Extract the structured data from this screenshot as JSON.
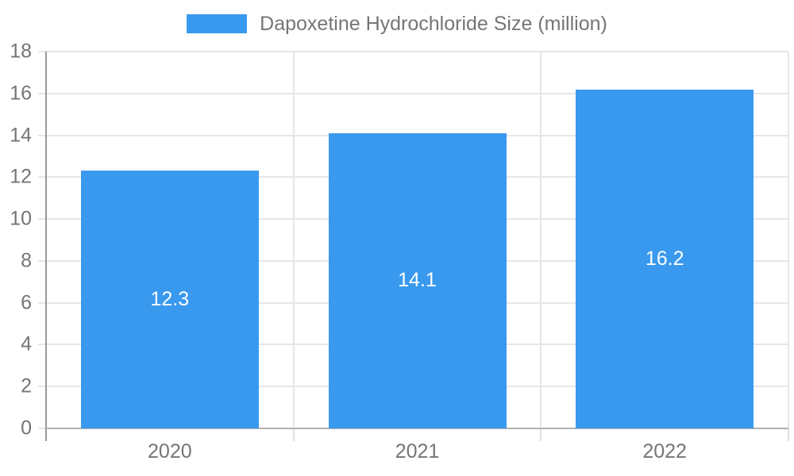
{
  "chart_data": {
    "type": "bar",
    "legend_label": "Dapoxetine Hydrochloride Size (million)",
    "categories": [
      "2020",
      "2021",
      "2022"
    ],
    "series": [
      {
        "name": "Dapoxetine Hydrochloride Size (million)",
        "values": [
          12.3,
          14.1,
          16.2
        ]
      }
    ],
    "value_labels": [
      "12.3",
      "14.1",
      "16.2"
    ],
    "title": "",
    "xlabel": "",
    "ylabel": "",
    "ylim": [
      0,
      18
    ],
    "ytick_step": 2,
    "yticks": [
      0,
      2,
      4,
      6,
      8,
      10,
      12,
      14,
      16,
      18
    ],
    "grid": "on",
    "legend_position": "top-center",
    "colors": {
      "bar": "#3999EE",
      "gridline": "#e6e6e6",
      "baseline": "#b3b3b3",
      "axis_line": "#999999",
      "tick": "#e0e0e0",
      "axis_label": "#757575",
      "value_label": "#ffffff"
    }
  }
}
